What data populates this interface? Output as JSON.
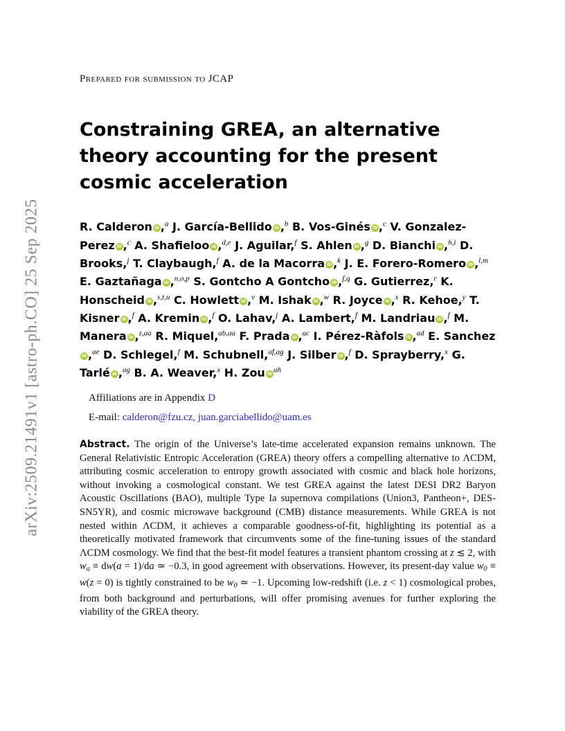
{
  "page": {
    "header_note": "Prepared for submission to JCAP",
    "title": "Constraining GREA, an alternative theory accounting for the present cosmic acceleration",
    "arxiv_watermark": "arXiv:2509.21491v1 [astro-ph.CO] 25 Sep 2025"
  },
  "authors": [
    {
      "name": "R. Calderon",
      "orcid": true,
      "sup": "a"
    },
    {
      "name": "J. García-Bellido",
      "orcid": true,
      "sup": "b"
    },
    {
      "name": "B. Vos-Ginés",
      "orcid": true,
      "sup": "c"
    },
    {
      "name": "V. Gonzalez-Perez",
      "orcid": true,
      "sup": "c"
    },
    {
      "name": "A. Shafieloo",
      "orcid": true,
      "sup": "d,e"
    },
    {
      "name": "J. Aguilar",
      "orcid": false,
      "sup": "f"
    },
    {
      "name": "S. Ahlen",
      "orcid": true,
      "sup": "g"
    },
    {
      "name": "D. Bianchi",
      "orcid": true,
      "sup": "h,i"
    },
    {
      "name": "D. Brooks",
      "orcid": false,
      "sup": "j"
    },
    {
      "name": "T. Claybaugh",
      "orcid": false,
      "sup": "f"
    },
    {
      "name": "A. de la Macorra",
      "orcid": true,
      "sup": "k"
    },
    {
      "name": "J. E. Forero-Romero",
      "orcid": true,
      "sup": "l,m"
    },
    {
      "name": "E. Gaztañaga",
      "orcid": true,
      "sup": "n,o,p"
    },
    {
      "name": "S. Gontcho A Gontcho",
      "orcid": true,
      "sup": "f,q"
    },
    {
      "name": "G. Gutierrez",
      "orcid": false,
      "sup": "r"
    },
    {
      "name": "K. Honscheid",
      "orcid": true,
      "sup": "s,t,u"
    },
    {
      "name": "C. Howlett",
      "orcid": true,
      "sup": "v"
    },
    {
      "name": "M. Ishak",
      "orcid": true,
      "sup": "w"
    },
    {
      "name": "R. Joyce",
      "orcid": true,
      "sup": "x"
    },
    {
      "name": "R. Kehoe",
      "orcid": false,
      "sup": "y"
    },
    {
      "name": "T. Kisner",
      "orcid": true,
      "sup": "f"
    },
    {
      "name": "A. Kremin",
      "orcid": true,
      "sup": "f"
    },
    {
      "name": "O. Lahav",
      "orcid": false,
      "sup": "j"
    },
    {
      "name": "A. Lambert",
      "orcid": false,
      "sup": "f"
    },
    {
      "name": "M. Landriau",
      "orcid": true,
      "sup": "f"
    },
    {
      "name": "M. Manera",
      "orcid": true,
      "sup": "z,aa"
    },
    {
      "name": "R. Miquel",
      "orcid": false,
      "sup": "ab,aa"
    },
    {
      "name": "F. Prada",
      "orcid": true,
      "sup": "ac"
    },
    {
      "name": "I. Pérez-Ràfols",
      "orcid": true,
      "sup": "ad"
    },
    {
      "name": "E. Sanchez",
      "orcid": true,
      "sup": "ae"
    },
    {
      "name": "D. Schlegel",
      "orcid": false,
      "sup": "f"
    },
    {
      "name": "M. Schubnell",
      "orcid": false,
      "sup": "af,ag"
    },
    {
      "name": "J. Silber",
      "orcid": true,
      "sup": "f"
    },
    {
      "name": "D. Sprayberry",
      "orcid": false,
      "sup": "x"
    },
    {
      "name": "G. Tarlé",
      "orcid": true,
      "sup": "ag"
    },
    {
      "name": "B. A. Weaver",
      "orcid": false,
      "sup": "x"
    },
    {
      "name": "H. Zou",
      "orcid": true,
      "sup": "ah"
    }
  ],
  "affiliations_note": {
    "prefix": "Affiliations are in Appendix ",
    "link": "D"
  },
  "email": {
    "label": "E-mail: ",
    "link1": "calderon@fzu.cz",
    "separator": ", ",
    "link2": "juan.garciabellido@uam.es"
  },
  "abstract": {
    "label": "Abstract.",
    "runs": [
      {
        "style": "p",
        "text": "The origin of the Universe’s late-time accelerated expansion remains unknown. The General Relativistic Entropic Acceleration (GREA) theory offers a compelling alternative to ΛCDM, attributing cosmic acceleration to entropy growth associated with cosmic and black hole horizons, without invoking a cosmological constant. We test GREA against the latest DESI DR2 Baryon Acoustic Oscillations (BAO), multiple Type Ia supernova compilations (Union3, Pantheon+, DES-SN5YR), and cosmic microwave background (CMB) distance measurements. While GREA is not nested within ΛCDM, it achieves a comparable goodness-of-fit, highlighting its potential as a theoretically motivated framework that circumvents some of the fine-tuning issues of the standard ΛCDM cosmology. We find that the best-fit model features a transient phantom crossing at "
      },
      {
        "style": "m",
        "text": "z"
      },
      {
        "style": "p",
        "text": " ≲ 2, with "
      },
      {
        "style": "m",
        "text": "w"
      },
      {
        "style": "ms",
        "text": "a"
      },
      {
        "style": "p",
        "text": " ≡ d"
      },
      {
        "style": "m",
        "text": "w"
      },
      {
        "style": "p",
        "text": "("
      },
      {
        "style": "m",
        "text": "a"
      },
      {
        "style": "p",
        "text": " = 1)/d"
      },
      {
        "style": "m",
        "text": "a"
      },
      {
        "style": "p",
        "text": " ≃ −0.3, in good agreement with observations. However, its present-day value "
      },
      {
        "style": "m",
        "text": "w"
      },
      {
        "style": "ms",
        "text": "0"
      },
      {
        "style": "p",
        "text": " ≡ "
      },
      {
        "style": "m",
        "text": "w"
      },
      {
        "style": "p",
        "text": "("
      },
      {
        "style": "m",
        "text": "z"
      },
      {
        "style": "p",
        "text": " = 0) is tightly constrained to be "
      },
      {
        "style": "m",
        "text": "w"
      },
      {
        "style": "ms",
        "text": "0"
      },
      {
        "style": "p",
        "text": " ≃ −1. Upcoming low-redshift (i.e. "
      },
      {
        "style": "m",
        "text": "z"
      },
      {
        "style": "p",
        "text": " < 1) cosmological probes, from both background and perturbations, will offer promising avenues for further exploring the viability of the GREA theory."
      }
    ]
  },
  "icons": {
    "orcid": "iD"
  },
  "colors": {
    "orcid_green": "#A6CE39",
    "link_blue": "#2828DC",
    "watermark_gray": "#8A8A8A"
  }
}
